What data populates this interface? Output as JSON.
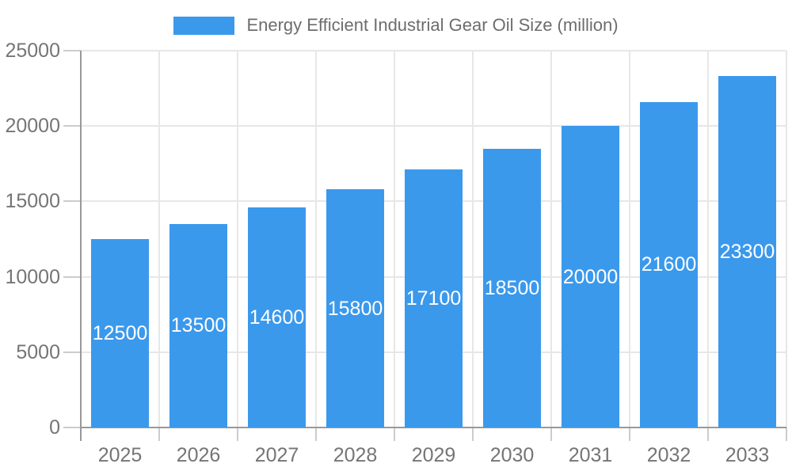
{
  "chart_data": {
    "type": "bar",
    "title": "Energy Efficient Industrial Gear Oil Size (million)",
    "legend": [
      "Energy Efficient Industrial Gear Oil Size (million)"
    ],
    "legend_position": "top",
    "categories": [
      "2025",
      "2026",
      "2027",
      "2028",
      "2029",
      "2030",
      "2031",
      "2032",
      "2033"
    ],
    "values": [
      12500,
      13500,
      14600,
      15800,
      17100,
      18500,
      20000,
      21600,
      23300
    ],
    "xlabel": "",
    "ylabel": "",
    "ylim": [
      0,
      25000
    ],
    "yticks": [
      0,
      5000,
      10000,
      15000,
      20000,
      25000
    ],
    "grid": true,
    "value_labels": "inside-center"
  },
  "colors": {
    "background": "#ffffff",
    "bar": "#3b99ec",
    "grid": "#e7e7e7",
    "axis": "#999999",
    "tick": "#cccccc",
    "tick_label": "#757575",
    "legend_text": "#6d6d6d",
    "value_label": "#ffffff"
  }
}
